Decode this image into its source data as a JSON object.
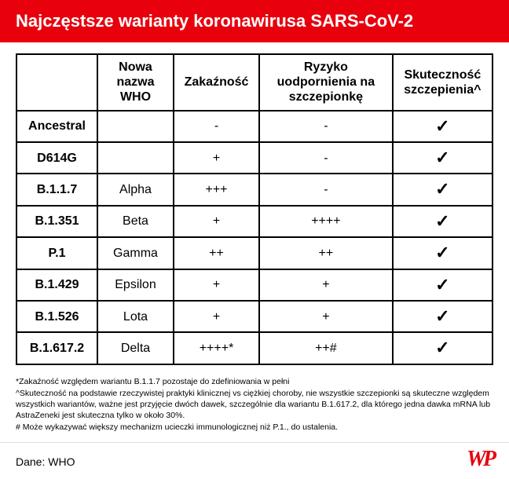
{
  "colors": {
    "header_bg": "#e8000d",
    "header_fg": "#ffffff",
    "logo": "#e8000d",
    "border": "#000000",
    "background": "#ffffff"
  },
  "header": {
    "title": "Najczęstsze warianty koronawirusa SARS-CoV-2"
  },
  "table": {
    "type": "table",
    "columns": [
      {
        "label": "",
        "width_pct": 17
      },
      {
        "label": "Nowa nazwa WHO",
        "width_pct": 16
      },
      {
        "label": "Zakaźność",
        "width_pct": 18
      },
      {
        "label": "Ryzyko uodpornienia na szczepionkę",
        "width_pct": 28
      },
      {
        "label": "Skuteczność szczepienia^",
        "width_pct": 21
      }
    ],
    "rows": [
      {
        "variant": "Ancestral",
        "who": "",
        "infectivity": "-",
        "risk": "-",
        "eff": "✓"
      },
      {
        "variant": "D614G",
        "who": "",
        "infectivity": "+",
        "risk": "-",
        "eff": "✓"
      },
      {
        "variant": "B.1.1.7",
        "who": "Alpha",
        "infectivity": "+++",
        "risk": "-",
        "eff": "✓"
      },
      {
        "variant": "B.1.351",
        "who": "Beta",
        "infectivity": "+",
        "risk": "++++",
        "eff": "✓"
      },
      {
        "variant": "P.1",
        "who": "Gamma",
        "infectivity": "++",
        "risk": "++",
        "eff": "✓"
      },
      {
        "variant": "B.1.429",
        "who": "Epsilon",
        "infectivity": "+",
        "risk": "+",
        "eff": "✓"
      },
      {
        "variant": "B.1.526",
        "who": "Lota",
        "infectivity": "+",
        "risk": "+",
        "eff": "✓"
      },
      {
        "variant": "B.1.617.2",
        "who": "Delta",
        "infectivity": "++++*",
        "risk": "++#",
        "eff": "✓"
      }
    ]
  },
  "footnotes": [
    "*Zakaźność względem wariantu B.1.1.7 pozostaje do zdefiniowania w pełni",
    "^Skuteczność na podstawie rzeczywistej praktyki klinicznej vs ciężkiej choroby, nie wszystkie szczepionki są skuteczne względem wszystkich wariantów, ważne jest przyjęcie dwóch dawek, szczególnie dla wariantu B.1.617.2, dla którego jedna dawka mRNA lub AstraZeneki jest skuteczna tylko w około 30%.",
    "# Może wykazywać większy mechanizm ucieczki immunologicznej niż P.1., do ustalenia."
  ],
  "source": {
    "label": "Dane: WHO"
  },
  "logo": {
    "text": "WP"
  }
}
